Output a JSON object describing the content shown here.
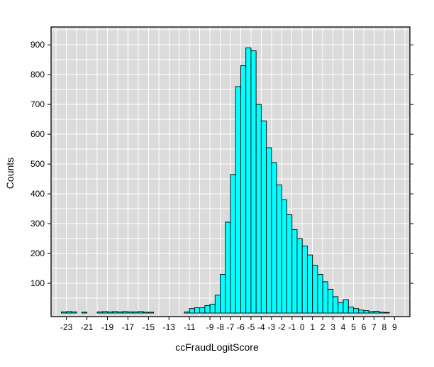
{
  "figure": {
    "xlabel": "ccFraudLogitScore",
    "ylabel": "Counts"
  },
  "chart_data": {
    "type": "bar",
    "subtype": "histogram",
    "title": "",
    "xlabel": "ccFraudLogitScore",
    "ylabel": "Counts",
    "x_domain": [
      -24.5,
      10.5
    ],
    "y_domain": [
      0,
      960
    ],
    "bin_width": 0.5,
    "x_ticks": [
      -23,
      -21,
      -19,
      -17,
      -15,
      -13,
      -11,
      -9,
      -8,
      -7,
      -6,
      -5,
      -4,
      -3,
      -2,
      -1,
      0,
      1,
      2,
      3,
      4,
      5,
      6,
      7,
      8,
      9
    ],
    "y_ticks": [
      100,
      200,
      300,
      400,
      500,
      600,
      700,
      800,
      900
    ],
    "grid": {
      "show": true,
      "x_step": 1,
      "y_step": 50
    },
    "legend": "none",
    "bars": [
      [
        -23.5,
        4
      ],
      [
        -23.0,
        5
      ],
      [
        -22.5,
        4
      ],
      [
        -21.5,
        3
      ],
      [
        -20.0,
        4
      ],
      [
        -19.5,
        5
      ],
      [
        -19.0,
        4
      ],
      [
        -18.5,
        5
      ],
      [
        -18.0,
        4
      ],
      [
        -17.5,
        5
      ],
      [
        -17.0,
        4
      ],
      [
        -16.5,
        4
      ],
      [
        -16.0,
        5
      ],
      [
        -15.5,
        3
      ],
      [
        -15.0,
        3
      ],
      [
        -11.5,
        4
      ],
      [
        -11.0,
        15
      ],
      [
        -10.5,
        18
      ],
      [
        -10.0,
        18
      ],
      [
        -9.5,
        25
      ],
      [
        -9.0,
        30
      ],
      [
        -8.5,
        60
      ],
      [
        -8.0,
        130
      ],
      [
        -7.5,
        305
      ],
      [
        -7.0,
        465
      ],
      [
        -6.5,
        760
      ],
      [
        -6.0,
        830
      ],
      [
        -5.5,
        890
      ],
      [
        -5.0,
        880
      ],
      [
        -4.5,
        700
      ],
      [
        -4.0,
        645
      ],
      [
        -3.5,
        555
      ],
      [
        -3.0,
        505
      ],
      [
        -2.5,
        430
      ],
      [
        -2.0,
        380
      ],
      [
        -1.5,
        330
      ],
      [
        -1.0,
        280
      ],
      [
        -0.5,
        250
      ],
      [
        0.0,
        225
      ],
      [
        0.5,
        195
      ],
      [
        1.0,
        160
      ],
      [
        1.5,
        130
      ],
      [
        2.0,
        105
      ],
      [
        2.5,
        80
      ],
      [
        3.0,
        55
      ],
      [
        3.5,
        35
      ],
      [
        4.0,
        45
      ],
      [
        4.5,
        20
      ],
      [
        5.0,
        15
      ],
      [
        5.5,
        10
      ],
      [
        6.0,
        8
      ],
      [
        6.5,
        5
      ],
      [
        7.0,
        6
      ],
      [
        7.5,
        3
      ],
      [
        8.0,
        2
      ]
    ],
    "colors": {
      "bar_fill": "#00FFFF",
      "bar_stroke": "#000000",
      "plot_bg": "#DBDBDB",
      "grid": "#FFFFFF",
      "frame": "#000000",
      "text": "#000000"
    }
  }
}
